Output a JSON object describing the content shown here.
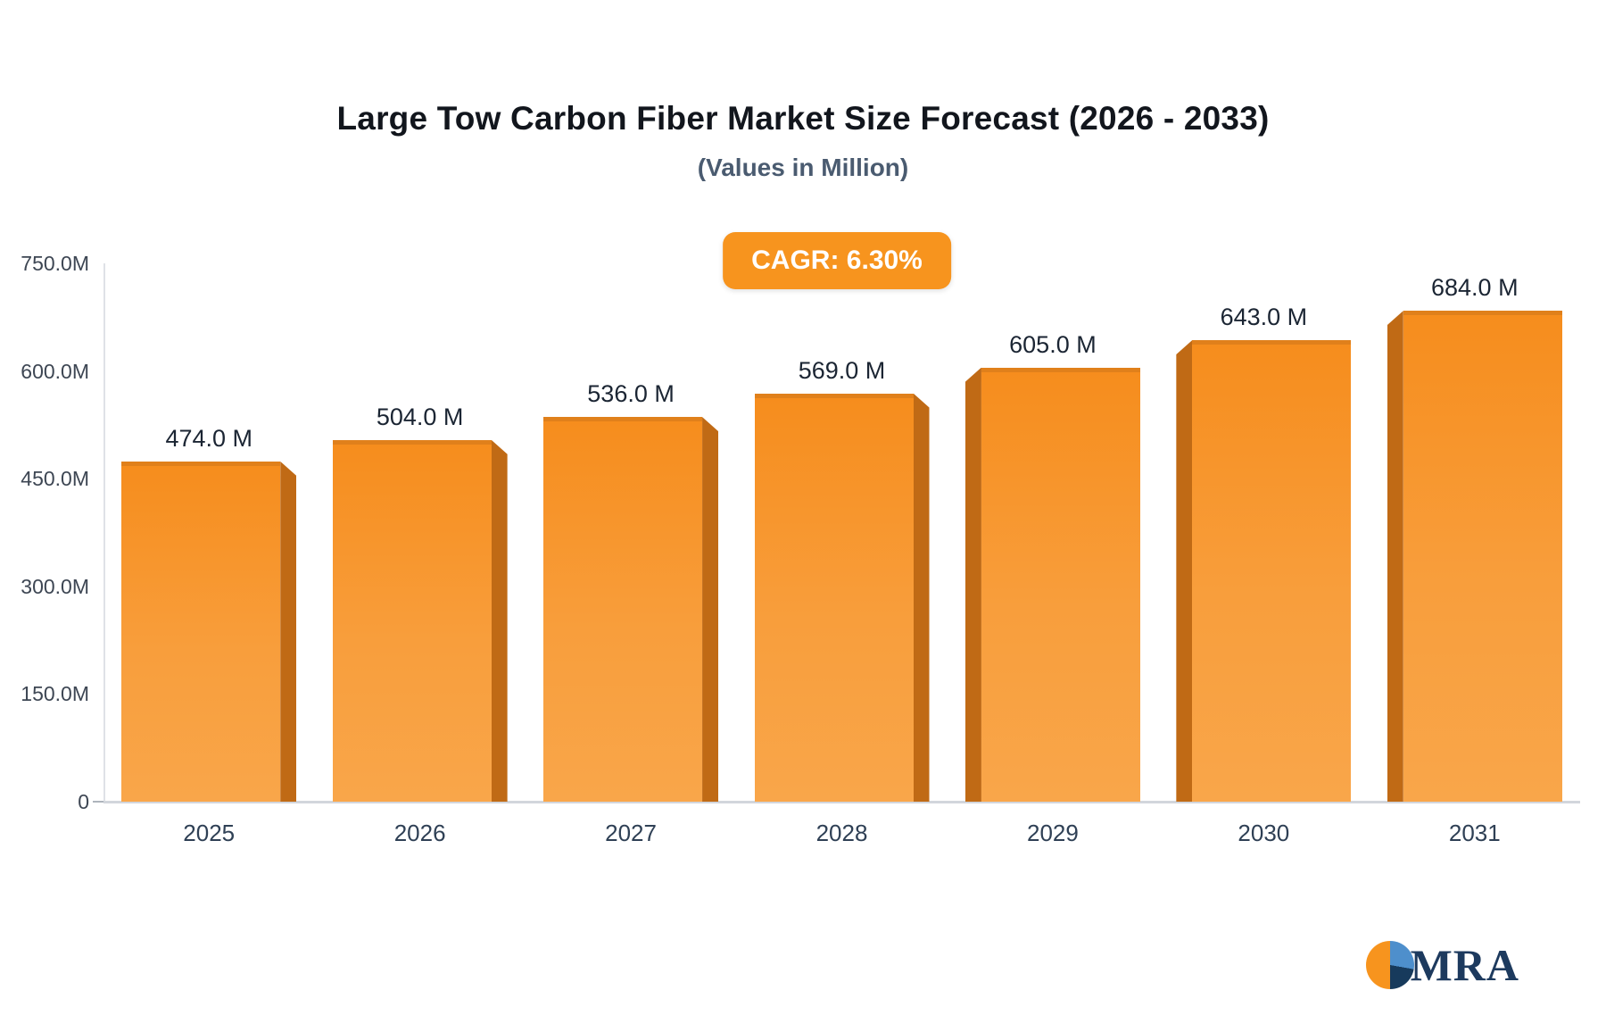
{
  "title": "Large Tow Carbon Fiber Market Size Forecast (2026 - 2033)",
  "subtitle": "(Values in Million)",
  "badge": {
    "label": "CAGR: 6.30%"
  },
  "logo": {
    "text": "MRA"
  },
  "colors": {
    "bar": "#F7941E",
    "bar_side": "#C06A15",
    "badge_bg": "#F7941E",
    "badge_text": "#FFFFFF",
    "axis_line": "#D2D6DC",
    "label_text": "#1B2533"
  },
  "chart_data": {
    "type": "bar",
    "title": "Large Tow Carbon Fiber Market Size Forecast (2026 - 2033)",
    "subtitle": "(Values in Million)",
    "cagr": "CAGR: 6.30%",
    "categories": [
      "2025",
      "2026",
      "2027",
      "2028",
      "2029",
      "2030",
      "2031"
    ],
    "values": [
      474.0,
      504.0,
      536.0,
      569.0,
      605.0,
      643.0,
      684.0
    ],
    "value_labels": [
      "474.0 M",
      "504.0 M",
      "536.0 M",
      "569.0 M",
      "605.0 M",
      "643.0 M",
      "684.0 M"
    ],
    "xlabel": "",
    "ylabel": "",
    "ylim": [
      0,
      750
    ],
    "yticks": [
      {
        "value": 750,
        "label": "750.0M"
      },
      {
        "value": 600,
        "label": "600.0M"
      },
      {
        "value": 450,
        "label": "450.0M"
      },
      {
        "value": 300,
        "label": "300.0M"
      },
      {
        "value": 150,
        "label": "150.0M"
      },
      {
        "value": 0,
        "label": "0"
      }
    ],
    "grid": false,
    "legend": false,
    "bar_color": "#F7941E"
  }
}
